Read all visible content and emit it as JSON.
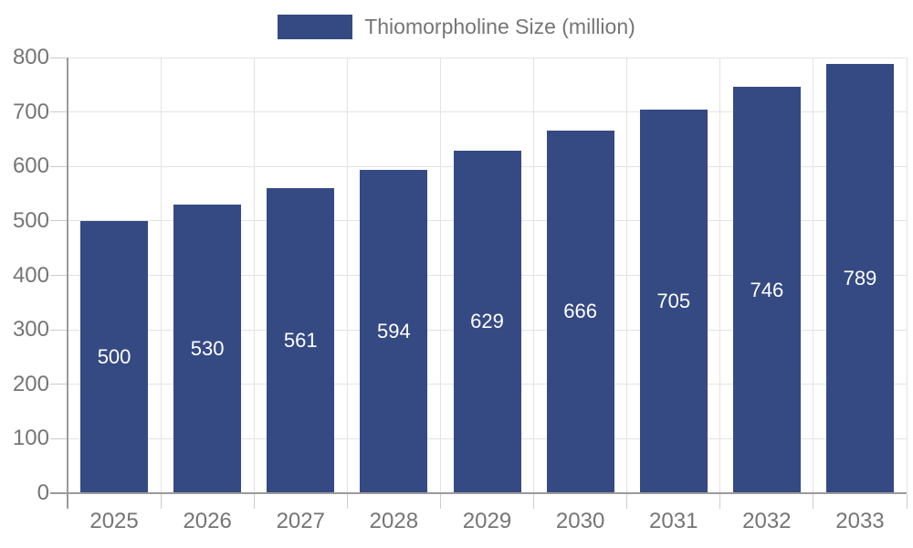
{
  "chart_data": {
    "type": "bar",
    "title": "",
    "legend": "Thiomorpholine Size (million)",
    "legend_position": "top",
    "categories": [
      "2025",
      "2026",
      "2027",
      "2028",
      "2029",
      "2030",
      "2031",
      "2032",
      "2033"
    ],
    "series": [
      {
        "name": "Thiomorpholine Size (million)",
        "values": [
          500,
          530,
          561,
          594,
          629,
          666,
          705,
          746,
          789
        ]
      }
    ],
    "xlabel": "",
    "ylabel": "",
    "ylim": [
      0,
      800
    ],
    "ytick_step": 100,
    "yticks": [
      0,
      100,
      200,
      300,
      400,
      500,
      600,
      700,
      800
    ],
    "grid": true,
    "value_labels": "inside-center"
  },
  "colors": {
    "bar": "#354a83",
    "axis_line": "#9a9a9a",
    "grid_line": "#e3e3e3",
    "tick_mark": "#cccccc",
    "axis_text": "#757575",
    "legend_text": "#757575",
    "value_label_text": "#ffffff",
    "background": "#ffffff"
  }
}
